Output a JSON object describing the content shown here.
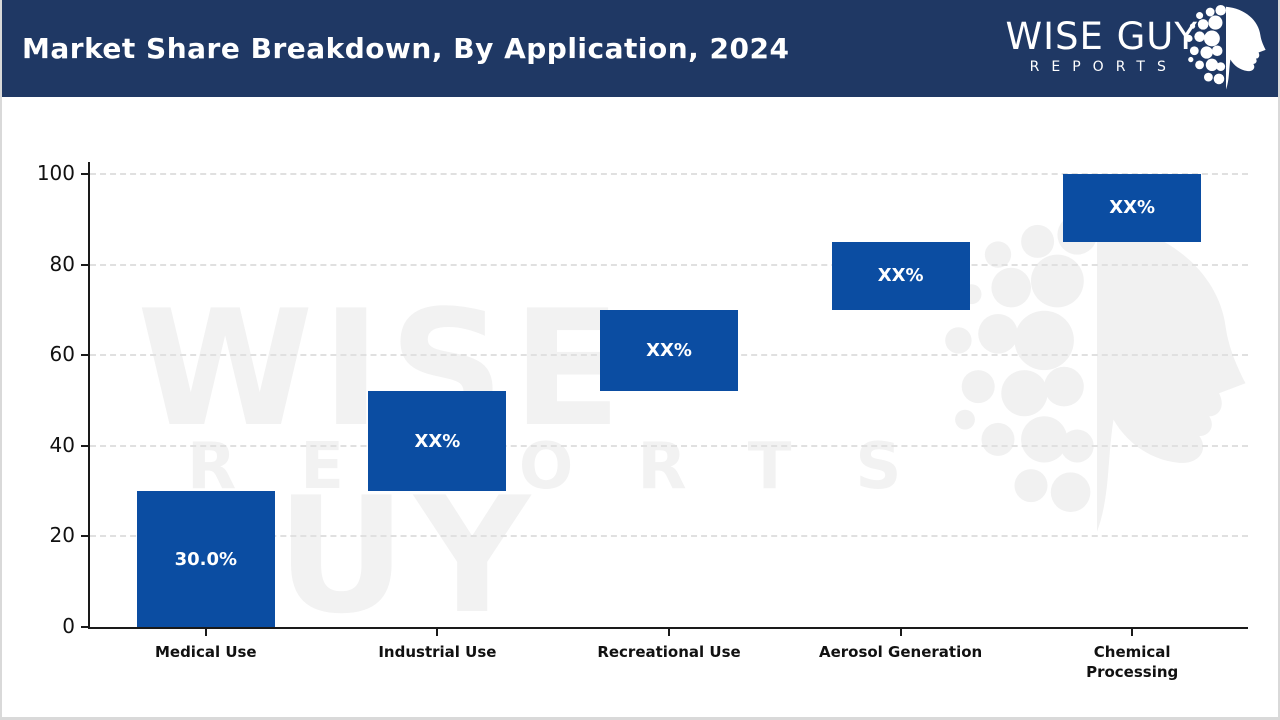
{
  "header": {
    "title": "Market Share Breakdown, By Application, 2024",
    "bg_color": "#1f3864",
    "logo": {
      "line1": "WISE GUY",
      "line2": "REPORTS"
    }
  },
  "watermark": {
    "line1": "WISE GUY",
    "line2": "REPORTS"
  },
  "chart_data": {
    "type": "bar",
    "subtype": "waterfall",
    "title": "Market Share Breakdown, By Application, 2024",
    "categories": [
      "Medical Use",
      "Industrial Use",
      "Recreational Use",
      "Aerosol Generation",
      "Chemical\nProcessing"
    ],
    "values": [
      30,
      22,
      18,
      15,
      15
    ],
    "base": [
      0,
      30,
      52,
      70,
      85
    ],
    "cumulative_top": [
      30,
      52,
      70,
      85,
      100
    ],
    "bar_labels": [
      "30.0%",
      "XX%",
      "XX%",
      "XX%",
      "XX%"
    ],
    "ylim": [
      0,
      100
    ],
    "yticks": [
      0,
      20,
      40,
      60,
      80,
      100
    ],
    "xlabel": "",
    "ylabel": "",
    "grid": "horizontal-dashed",
    "legend": "none",
    "bar_color": "#0b4da2",
    "label_color": "#ffffff"
  },
  "colors": {
    "header_bg": "#1f3864",
    "bar_blue": "#0b4da2",
    "page_border": "#d9d9d9",
    "grid": "#e0e0e0",
    "axis": "#1a1a1a",
    "watermark": "#f2f2f2"
  }
}
